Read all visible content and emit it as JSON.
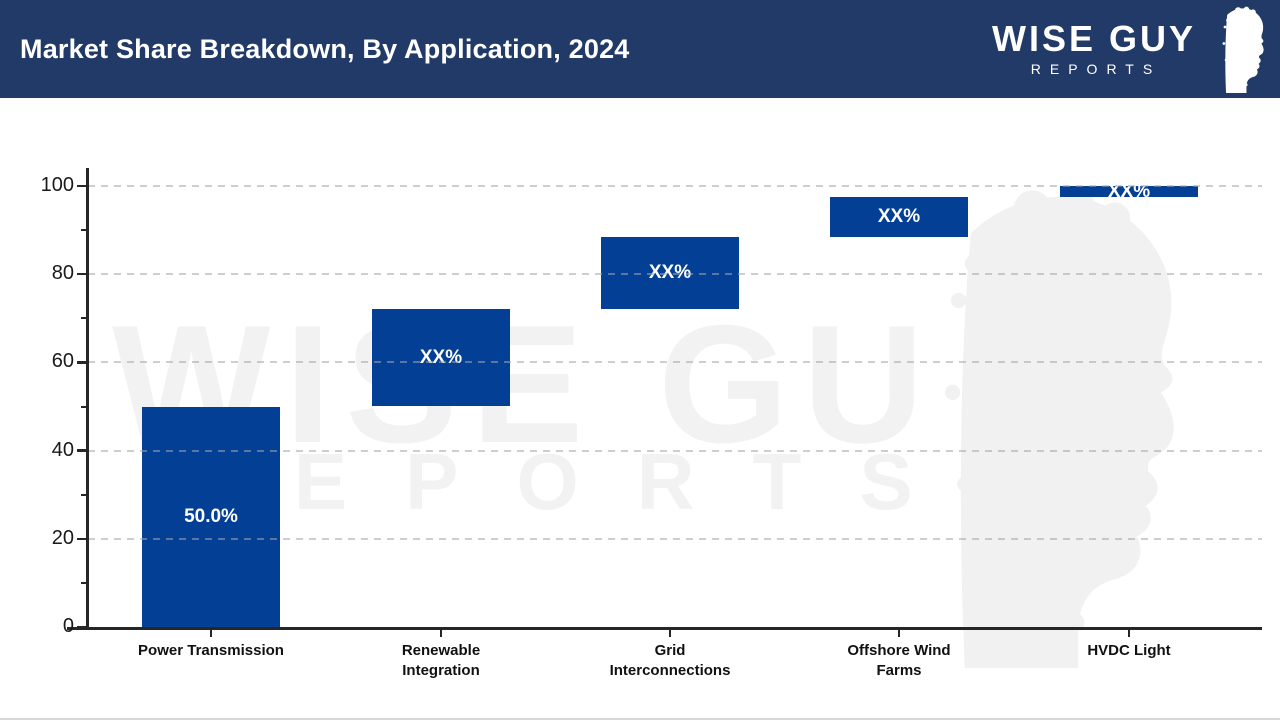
{
  "header": {
    "title": "Market Share Breakdown, By Application, 2024",
    "logo": {
      "line1": "WISE GUY",
      "line2": "REPORTS"
    }
  },
  "watermark": {
    "line1": "WISE GU Y",
    "line2": "REPORTS"
  },
  "chart_data": {
    "type": "bar",
    "subtype": "waterfall",
    "title": "Market Share Breakdown, By Application, 2024",
    "xlabel": "",
    "ylabel": "",
    "categories": [
      "Power Transmission",
      "Renewable Integration",
      "Grid Interconnections",
      "Offshore Wind Farms",
      "HVDC Light"
    ],
    "category_lines": [
      [
        "Power Transmission"
      ],
      [
        "Renewable",
        "Integration"
      ],
      [
        "Grid",
        "Interconnections"
      ],
      [
        "Offshore Wind",
        "Farms"
      ],
      [
        "HVDC Light"
      ]
    ],
    "series": [
      {
        "name": "Market Share",
        "segments": [
          {
            "start": 0,
            "end": 50,
            "value": 50,
            "label": "50.0%"
          },
          {
            "start": 50,
            "end": 72,
            "value": 22,
            "label": "XX%"
          },
          {
            "start": 72,
            "end": 88.5,
            "value": 16.5,
            "label": "XX%"
          },
          {
            "start": 88.5,
            "end": 97.5,
            "value": 9,
            "label": "XX%"
          },
          {
            "start": 97.5,
            "end": 100,
            "value": 2.5,
            "label": "XX%"
          }
        ]
      }
    ],
    "ylim": [
      0,
      100
    ],
    "yticks": [
      0,
      20,
      40,
      60,
      80,
      100
    ],
    "minor_yticks": [
      10,
      30,
      50,
      70,
      90
    ],
    "grid": "horizontal dashed",
    "legend": "none",
    "bar_color": "#043F96"
  },
  "colors": {
    "header_bg": "#223A67",
    "bar": "#043F96",
    "axis": "#262626",
    "gridline": "#c9c9c9",
    "watermark": "#f2f2f2",
    "label_on_bar": "#ffffff"
  }
}
